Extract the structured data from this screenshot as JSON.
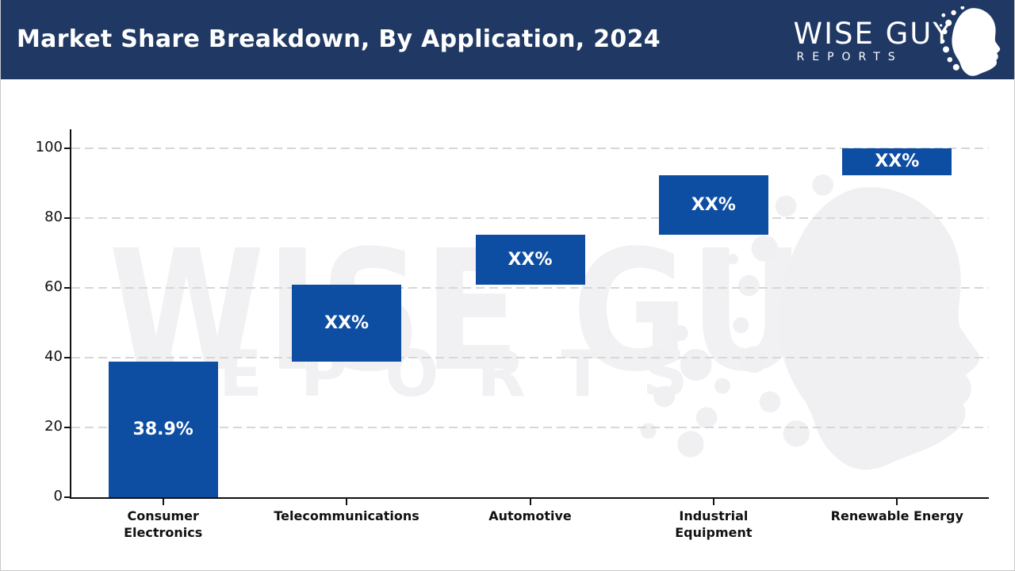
{
  "header": {
    "title": "Market Share Breakdown, By Application, 2024",
    "brand": {
      "line1": "WISE GUY",
      "line2": "REPORTS"
    },
    "bg_color": "#1F3864",
    "text_color": "#FFFFFF"
  },
  "watermark": {
    "line1": "WISE GUY",
    "line2": "REPORTS"
  },
  "chart_data": {
    "type": "bar",
    "subtype": "waterfall",
    "title": "Market Share Breakdown, By Application, 2024",
    "categories": [
      [
        "Consumer",
        "Electronics"
      ],
      [
        "Telecommunications"
      ],
      [
        "Automotive"
      ],
      [
        "Industrial",
        "Equipment"
      ],
      [
        "Renewable Energy"
      ]
    ],
    "segments": [
      {
        "name": "Consumer Electronics",
        "start": 0,
        "end": 38.9,
        "label": "38.9%"
      },
      {
        "name": "Telecommunications",
        "start": 38.9,
        "end": 61.0,
        "label": "XX%"
      },
      {
        "name": "Automotive",
        "start": 61.0,
        "end": 75.3,
        "label": "XX%"
      },
      {
        "name": "Industrial Equipment",
        "start": 75.3,
        "end": 92.3,
        "label": "XX%"
      },
      {
        "name": "Renewable Energy",
        "start": 92.3,
        "end": 100.0,
        "label": "XX%"
      }
    ],
    "yticks": [
      0,
      20,
      40,
      60,
      80,
      100
    ],
    "ylim": [
      0,
      105
    ],
    "xlabel": "",
    "ylabel": "",
    "grid": "dashed-horizontal",
    "legend": "none",
    "colors": {
      "bar": "#0D4DA2",
      "bar_label": "#FFFFFF",
      "grid": "#D7D7D7",
      "axis": "#111111",
      "tick_text": "#111111"
    }
  }
}
